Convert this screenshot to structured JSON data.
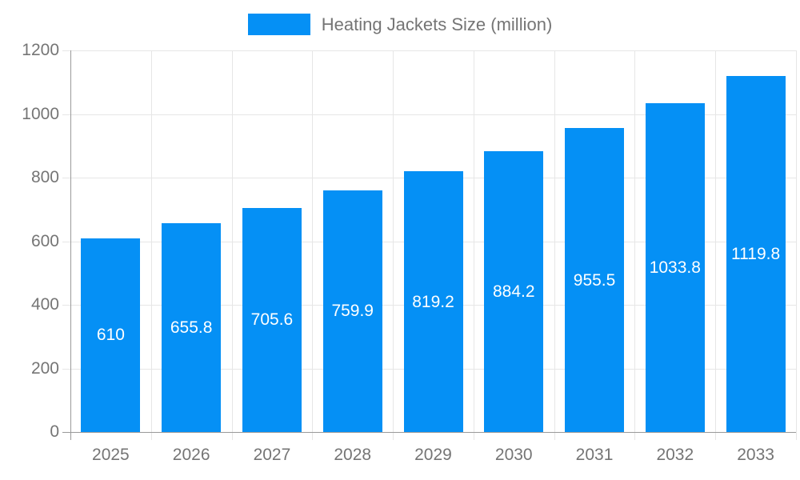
{
  "legend": {
    "label": "Heating Jackets Size (million)"
  },
  "chart_data": {
    "type": "bar",
    "title": "Heating Jackets Size (million)",
    "categories": [
      "2025",
      "2026",
      "2027",
      "2028",
      "2029",
      "2030",
      "2031",
      "2032",
      "2033"
    ],
    "values": [
      610,
      655.8,
      705.6,
      759.9,
      819.2,
      884.2,
      955.5,
      1033.8,
      1119.8
    ],
    "value_labels": [
      "610",
      "655.8",
      "705.6",
      "759.9",
      "819.2",
      "884.2",
      "955.5",
      "1033.8",
      "1119.8"
    ],
    "xlabel": "",
    "ylabel": "",
    "ylim": [
      0,
      1200
    ],
    "yticks": [
      0,
      200,
      400,
      600,
      800,
      1000,
      1200
    ],
    "grid": true,
    "legend_position": "top",
    "colors": {
      "bar": "#0590f5",
      "bar_label": "#ffffff",
      "tick_label": "#757575",
      "legend_text": "#757575",
      "gridline": "#e6e6e6",
      "axis_line": "#9a9a9a"
    }
  }
}
